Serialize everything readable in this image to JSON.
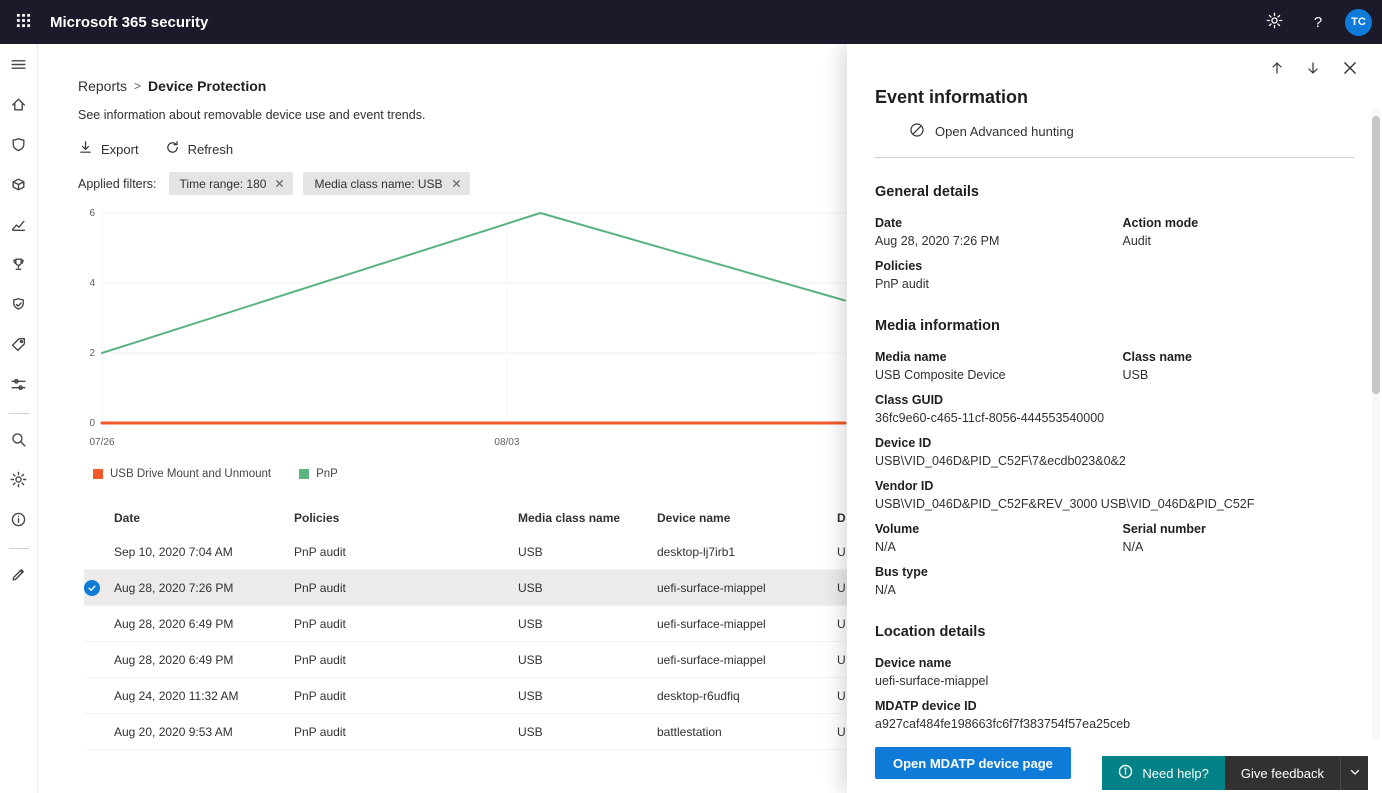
{
  "colors": {
    "accent": "#0f7bd8",
    "teal": "#038387",
    "dark": "#323130"
  },
  "topbar": {
    "title": "Microsoft 365 security",
    "avatar_initials": "TC"
  },
  "breadcrumb": {
    "parent": "Reports",
    "current": "Device Protection"
  },
  "page": {
    "subtitle": "See information about removable device use and event trends."
  },
  "toolbar": {
    "export_label": "Export",
    "refresh_label": "Refresh"
  },
  "filters": {
    "label": "Applied filters:",
    "chips": [
      {
        "label": "Time range: 180"
      },
      {
        "label": "Media class name: USB"
      }
    ]
  },
  "chart_data": {
    "type": "line",
    "title": "",
    "xlabel": "",
    "ylabel": "",
    "ylim": [
      0,
      6
    ],
    "y_ticks": [
      0,
      2,
      4,
      6
    ],
    "x_ticks": [
      {
        "label": "07/26",
        "pos": 0.0
      },
      {
        "label": "08/03",
        "pos": 0.545
      }
    ],
    "grid": true,
    "legend_position": "bottom-left",
    "series": [
      {
        "name": "USB Drive Mount and Unmount",
        "color": "#f1592a",
        "points": [
          [
            0,
            0
          ],
          [
            1,
            0
          ]
        ]
      },
      {
        "name": "PnP",
        "color": "#5bb381",
        "points": [
          [
            0,
            2
          ],
          [
            0.59,
            6
          ],
          [
            1,
            3.5
          ]
        ]
      }
    ]
  },
  "table": {
    "columns": [
      "Date",
      "Policies",
      "Media class name",
      "Device name",
      "D"
    ],
    "rows": [
      {
        "date": "Sep 10, 2020 7:04 AM",
        "policies": "PnP audit",
        "media_class": "USB",
        "device_name": "desktop-lj7irb1",
        "extra": "U",
        "selected": false
      },
      {
        "date": "Aug 28, 2020 7:26 PM",
        "policies": "PnP audit",
        "media_class": "USB",
        "device_name": "uefi-surface-miappel",
        "extra": "U",
        "selected": true
      },
      {
        "date": "Aug 28, 2020 6:49 PM",
        "policies": "PnP audit",
        "media_class": "USB",
        "device_name": "uefi-surface-miappel",
        "extra": "U",
        "selected": false
      },
      {
        "date": "Aug 28, 2020 6:49 PM",
        "policies": "PnP audit",
        "media_class": "USB",
        "device_name": "uefi-surface-miappel",
        "extra": "U",
        "selected": false
      },
      {
        "date": "Aug 24, 2020 11:32 AM",
        "policies": "PnP audit",
        "media_class": "USB",
        "device_name": "desktop-r6udfiq",
        "extra": "U",
        "selected": false
      },
      {
        "date": "Aug 20, 2020 9:53 AM",
        "policies": "PnP audit",
        "media_class": "USB",
        "device_name": "battlestation",
        "extra": "U",
        "selected": false
      }
    ]
  },
  "panel": {
    "title": "Event information",
    "open_hunting_label": "Open Advanced hunting",
    "sections": [
      {
        "title": "General details",
        "fields": [
          {
            "label": "Date",
            "value": "Aug 28, 2020 7:26 PM"
          },
          {
            "label": "Action mode",
            "value": "Audit"
          },
          {
            "label": "Policies",
            "value": "PnP audit"
          }
        ]
      },
      {
        "title": "Media information",
        "fields": [
          {
            "label": "Media name",
            "value": "USB Composite Device"
          },
          {
            "label": "Class name",
            "value": "USB"
          },
          {
            "label": "Class GUID",
            "value": "36fc9e60-c465-11cf-8056-444553540000",
            "full": true
          },
          {
            "label": "Device ID",
            "value": "USB\\VID_046D&PID_C52F\\7&ecdb023&0&2",
            "full": true
          },
          {
            "label": "Vendor ID",
            "value": "USB\\VID_046D&PID_C52F&REV_3000 USB\\VID_046D&PID_C52F",
            "full": true
          },
          {
            "label": "Volume",
            "value": "N/A"
          },
          {
            "label": "Serial number",
            "value": "N/A"
          },
          {
            "label": "Bus type",
            "value": "N/A"
          }
        ]
      },
      {
        "title": "Location details",
        "fields": [
          {
            "label": "Device name",
            "value": "uefi-surface-miappel",
            "full": true
          },
          {
            "label": "MDATP device ID",
            "value": "a927caf484fe198663fc6f7f383754f57ea25ceb",
            "full": true
          }
        ]
      }
    ],
    "footer_button": "Open MDATP device page"
  },
  "feedback": {
    "need_help": "Need help?",
    "give_feedback": "Give feedback"
  },
  "icons": {
    "waffle-icon": "app launcher grid",
    "gear-icon": "settings",
    "help-icon": "?",
    "export-icon": "download arrow",
    "refresh-icon": "circular arrow",
    "remove-filter-icon": "x",
    "selected-check-icon": "check in circle",
    "advanced-hunting-icon": "circle slash",
    "up-arrow-icon": "up",
    "down-arrow-icon": "down",
    "close-icon": "x",
    "info-icon": "i in circle",
    "chevron-down-icon": "v"
  }
}
